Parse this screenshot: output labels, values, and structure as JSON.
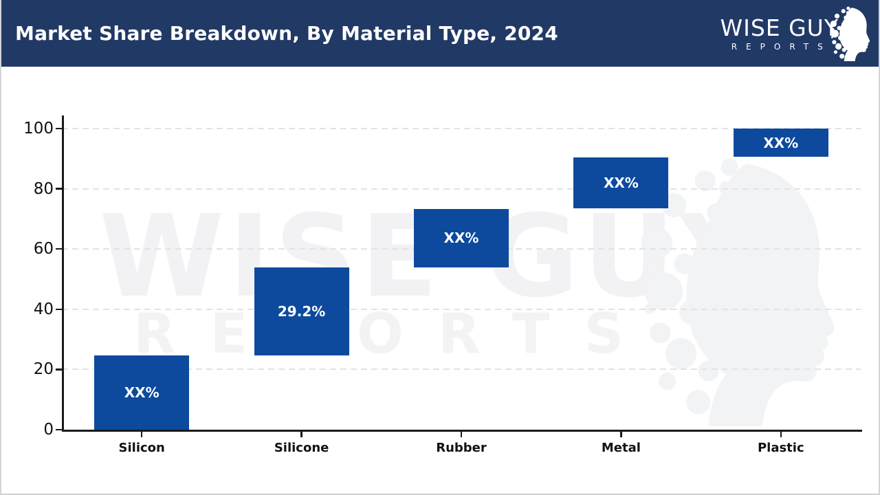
{
  "header": {
    "title": "Market Share Breakdown, By Material Type, 2024",
    "logo": {
      "name": "WISE GUY",
      "tagline": "REPORTS"
    }
  },
  "watermark": {
    "line1": "WISE GUY",
    "line2": "REPORTS"
  },
  "chart_data": {
    "type": "bar",
    "subtype": "waterfall-floating-segments",
    "title": "Market Share Breakdown, By Material Type, 2024",
    "categories": [
      "Silicon",
      "Silicone",
      "Rubber",
      "Metal",
      "Plastic"
    ],
    "segments": [
      {
        "category": "Silicon",
        "start": 0,
        "end": 24.6,
        "value": 24.6,
        "label": "XX%"
      },
      {
        "category": "Silicone",
        "start": 24.6,
        "end": 53.8,
        "value": 29.2,
        "label": "29.2%"
      },
      {
        "category": "Rubber",
        "start": 53.9,
        "end": 73.4,
        "value": 19.5,
        "label": "XX%"
      },
      {
        "category": "Metal",
        "start": 73.6,
        "end": 90.3,
        "value": 16.7,
        "label": "XX%"
      },
      {
        "category": "Plastic",
        "start": 90.6,
        "end": 100,
        "value": 9.4,
        "label": "XX%"
      }
    ],
    "yticks": [
      0,
      20,
      40,
      60,
      80,
      100
    ],
    "ylim": [
      0,
      105
    ],
    "xlabel": "",
    "ylabel": "",
    "grid": "horizontal-dashed",
    "legend": "none",
    "bar_color": "#0d4a9e",
    "bar_label_color": "#ffffff",
    "axis_color": "#1a1a1a",
    "grid_color": "#e3e3e5"
  },
  "colors": {
    "header_bg": "#213965",
    "page_bg": "#ffffff",
    "watermark": "#f2f2f4",
    "border": "#d4d4d4"
  }
}
